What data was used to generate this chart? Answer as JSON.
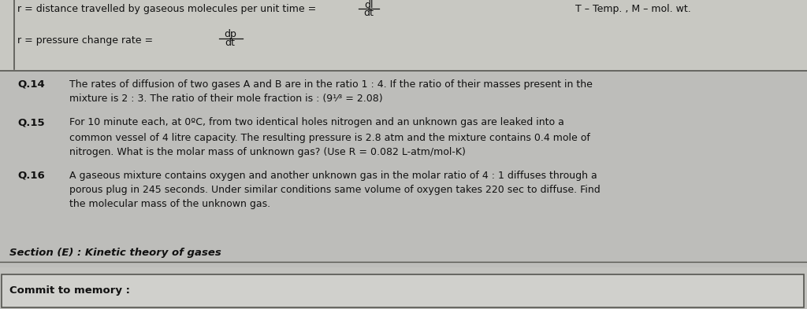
{
  "bg_color": "#b5b5b0",
  "top_section_color": "#c8c8c2",
  "main_section_color": "#bdbdba",
  "bottom_section_color": "#c2c2be",
  "commit_box_color": "#d0d0cc",
  "line_color": "#555550",
  "top_line1": "r = distance travelled by gaseous molecules per unit time =",
  "top_line1_frac_num": "dl",
  "top_line1_frac_den": "dt",
  "top_right": "T – Temp. , M – mol. wt.",
  "pressure_label": "r = pressure change rate =",
  "pressure_frac_num": "dp",
  "pressure_frac_den": "dt",
  "q14_num": "Q.14",
  "q14_text1": "The rates of diffusion of two gases A and B are in the ratio 1 : 4. If the ratio of their masses present in the",
  "q14_text2": "mixture is 2 : 3. The ratio of their mole fraction is : (9¹⁄³ = 2.08)",
  "q15_num": "Q.15",
  "q15_text1": "For 10 minute each, at 0ºC, from two identical holes nitrogen and an unknown gas are leaked into a",
  "q15_text2": "common vessel of 4 litre capacity. The resulting pressure is 2.8 atm and the mixture contains 0.4 mole of",
  "q15_text3": "nitrogen. What is the molar mass of unknown gas? (Use R = 0.082 L-atm/mol-K)",
  "q16_num": "Q.16",
  "q16_text1": "A gaseous mixture contains oxygen and another unknown gas in the molar ratio of 4 : 1 diffuses through a",
  "q16_text2": "porous plug in 245 seconds. Under similar conditions same volume of oxygen takes 220 sec to diffuse. Find",
  "q16_text3": "the molecular mass of the unknown gas.",
  "section_text": "Section (E) : Kinetic theory of gases",
  "commit_text": "Commit to memory :"
}
